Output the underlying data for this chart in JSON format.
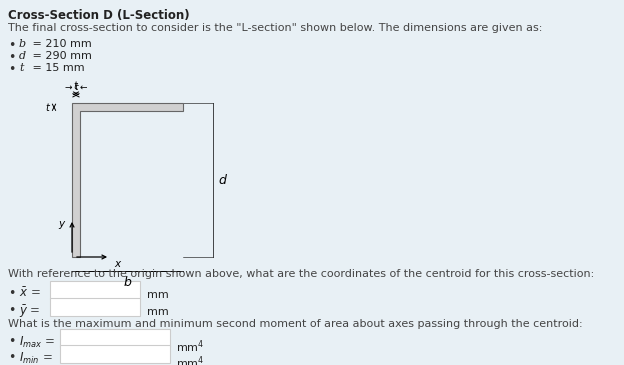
{
  "title": "Cross-Section D (L-Section)",
  "intro_text": "The final cross-section to consider is the \"L-section\" shown below. The dimensions are given as:",
  "bullet_math": [
    "b",
    "d",
    "t"
  ],
  "bullet_vals": [
    " = 210 mm",
    " = 290 mm",
    " = 15 mm"
  ],
  "bg_color": "#e8f0f5",
  "shape_fill": "#d0d0d0",
  "shape_edge": "#666666",
  "centroid_text": "With reference to the origin shown above, what are the coordinates of the centroid for this cross-section:",
  "moment_text": "What is the maximum and minimum second moment of area about axes passing through the centroid:",
  "input_box_color": "#ffffff",
  "input_box_edge": "#cccccc",
  "text_color": "#444444"
}
